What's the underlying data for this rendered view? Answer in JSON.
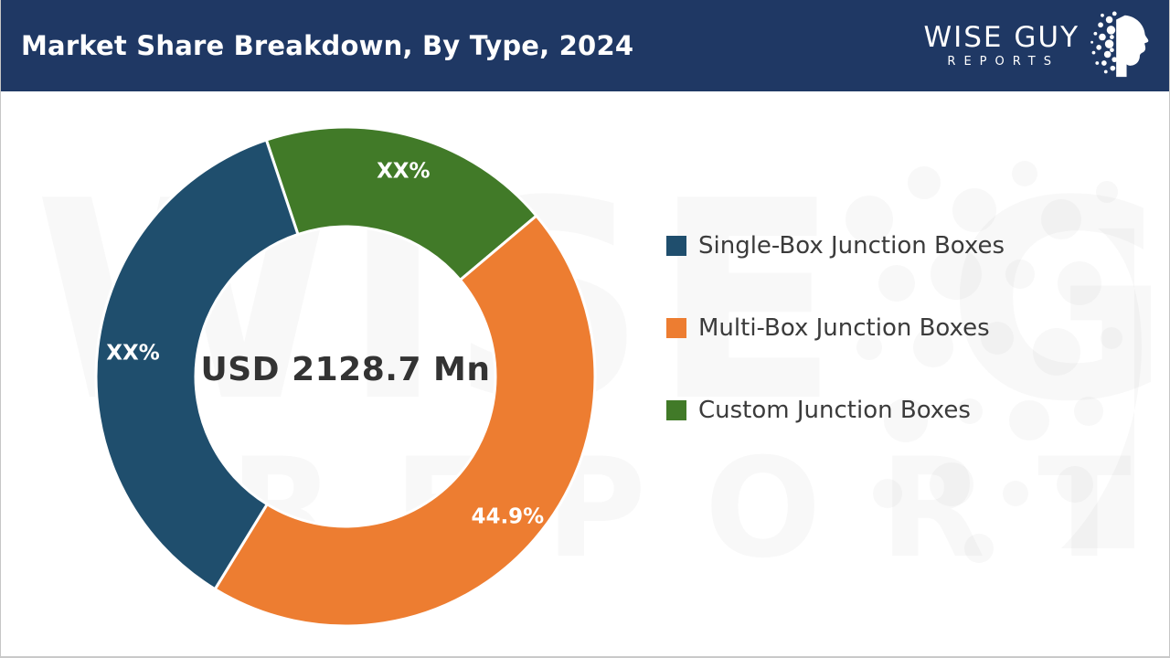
{
  "header": {
    "title": "Market Share Breakdown, By Type, 2024",
    "logo": {
      "title": "WISE GUY",
      "subtitle": "REPORTS"
    }
  },
  "watermark": {
    "line1": "WISE GUY",
    "line2": "REPORTS"
  },
  "chart_data": {
    "type": "pie",
    "subtype": "donut",
    "title": "Market Share Breakdown, By Type, 2024",
    "center_total": "USD 2128.7 Mn",
    "start_angle_deg": -18.5,
    "slices": [
      {
        "label": "Custom Junction Boxes",
        "value_label": "XX%",
        "percent": 19.0,
        "color": "#417a28"
      },
      {
        "label": "Multi-Box Junction Boxes",
        "value_label": "44.9%",
        "percent": 44.9,
        "color": "#ed7d31"
      },
      {
        "label": "Single-Box Junction Boxes",
        "value_label": "XX%",
        "percent": 36.1,
        "color": "#1f4e6d"
      }
    ],
    "legend": [
      {
        "label": "Single-Box Junction Boxes",
        "color": "#1f4e6d"
      },
      {
        "label": "Multi-Box Junction Boxes",
        "color": "#ed7d31"
      },
      {
        "label": "Custom Junction Boxes",
        "color": "#417a28"
      }
    ],
    "legend_position": "right"
  }
}
